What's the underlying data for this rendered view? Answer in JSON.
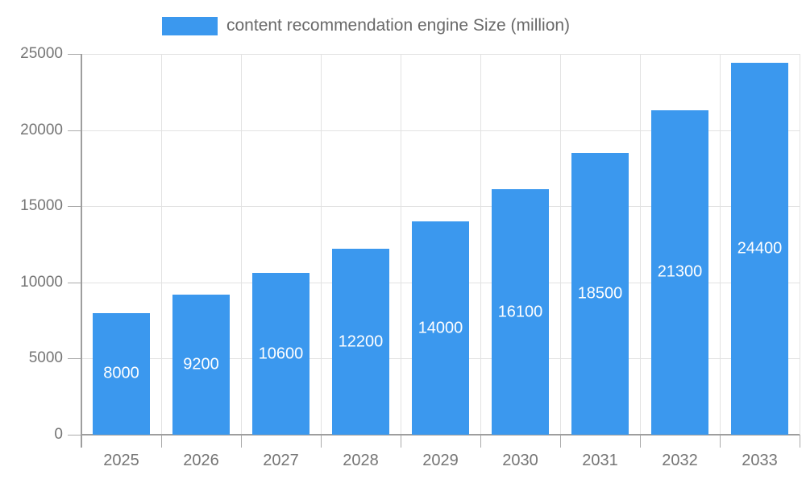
{
  "chart_data": {
    "type": "bar",
    "title": "content recommendation engine Size (million)",
    "categories": [
      "2025",
      "2026",
      "2027",
      "2028",
      "2029",
      "2030",
      "2031",
      "2032",
      "2033"
    ],
    "values": [
      8000,
      9200,
      10600,
      12200,
      14000,
      16100,
      18500,
      21300,
      24400
    ],
    "bar_value_labels": [
      "8000",
      "9200",
      "10600",
      "12200",
      "14000",
      "16100",
      "18500",
      "21300",
      "24400"
    ],
    "xlabel": "",
    "ylabel": "",
    "ylim": [
      0,
      25000
    ],
    "yticks": [
      0,
      5000,
      10000,
      15000,
      20000,
      25000
    ],
    "ytick_labels": [
      "0",
      "5000",
      "10000",
      "15000",
      "20000",
      "25000"
    ],
    "grid": true,
    "legend_position": "top",
    "colors": {
      "bar": "#3b98ee",
      "bar_value_text": "#ffffff",
      "axis_label_text": "#757575",
      "legend_text": "#696969",
      "gridline": "#e2e2e2",
      "axis_line": "#9e9e9e",
      "tick": "#aaaaaa",
      "background": "#ffffff"
    }
  }
}
